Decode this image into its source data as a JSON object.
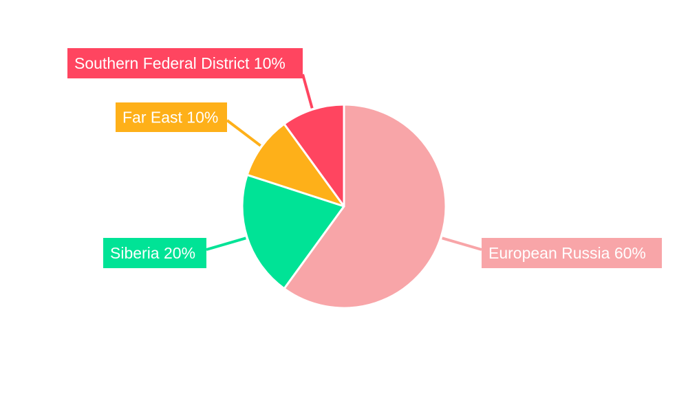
{
  "chart_data": {
    "type": "pie",
    "title": "",
    "slices": [
      {
        "label": "European Russia",
        "value": 60,
        "color": "#f8a5a8"
      },
      {
        "label": "Siberia",
        "value": 20,
        "color": "#00e396"
      },
      {
        "label": "Far East",
        "value": 10,
        "color": "#feb019"
      },
      {
        "label": "Southern Federal District",
        "value": 10,
        "color": "#ff4560"
      }
    ],
    "labels": [
      {
        "text": "European Russia 60%"
      },
      {
        "text": "Siberia 20%"
      },
      {
        "text": "Far East 10%"
      },
      {
        "text": "Southern Federal District 10%"
      }
    ],
    "start_angle_deg": 0,
    "direction": "clockwise",
    "legend": "none"
  }
}
